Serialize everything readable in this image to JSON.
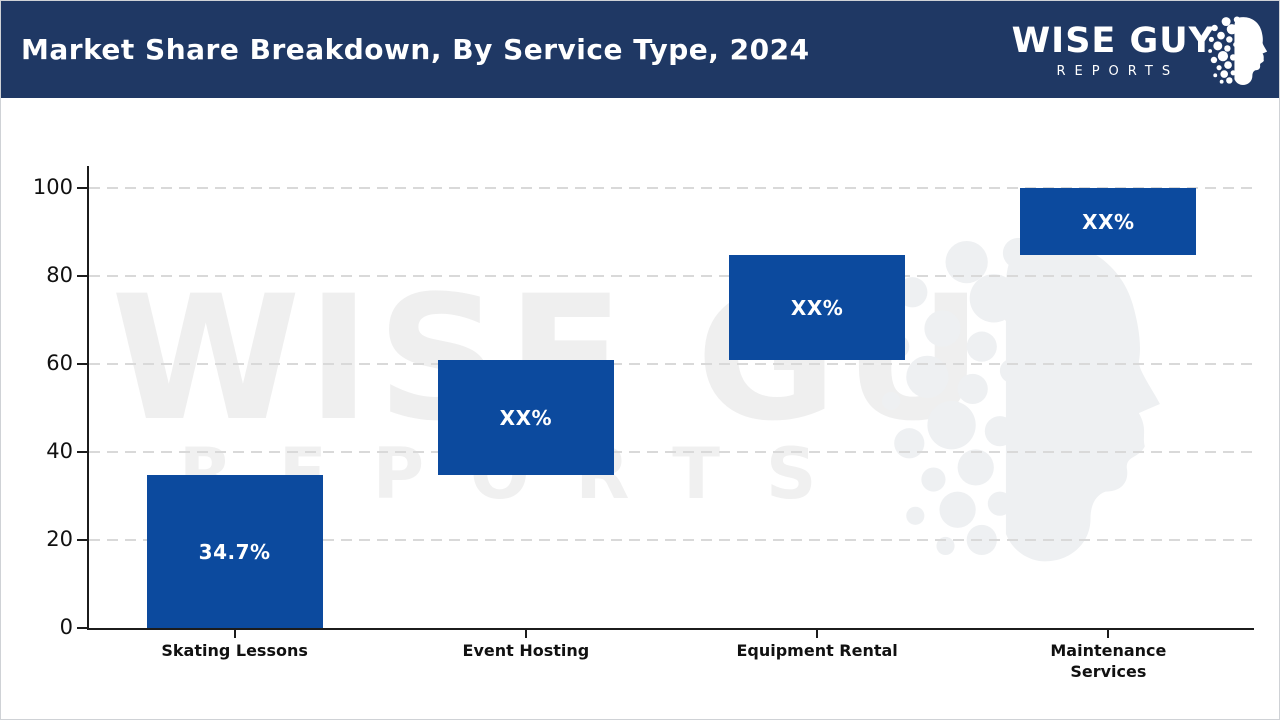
{
  "header": {
    "background": "#1f3864",
    "title": "Market Share Breakdown, By Service Type, 2024",
    "logo": {
      "name": "WISE GUY",
      "subtitle": "REPORTS",
      "head_icon": "dotted-head-profile"
    }
  },
  "watermark": {
    "wordmark": "WISE GUY",
    "subtitle": "REPORTS",
    "color": "#efefef",
    "head_icon": "dotted-head-profile"
  },
  "chart_data": {
    "type": "bar",
    "subtype": "waterfall",
    "title": "Market Share Breakdown, By Service Type, 2024",
    "categories": [
      "Skating Lessons",
      "Event Hosting",
      "Equipment Rental",
      "Maintenance Services"
    ],
    "category_lines": [
      [
        "Skating Lessons"
      ],
      [
        "Event Hosting"
      ],
      [
        "Equipment Rental"
      ],
      [
        "Maintenance",
        "Services"
      ]
    ],
    "series": [
      {
        "name": "Market share (%)",
        "segments": [
          {
            "category": "Skating Lessons",
            "start": 0,
            "end": 34.7,
            "label": "34.7%"
          },
          {
            "category": "Event Hosting",
            "start": 34.7,
            "end": 60.9,
            "label": "XX%"
          },
          {
            "category": "Equipment Rental",
            "start": 60.9,
            "end": 84.7,
            "label": "XX%"
          },
          {
            "category": "Maintenance Services",
            "start": 84.7,
            "end": 100,
            "label": "XX%"
          }
        ]
      }
    ],
    "ylim": [
      0,
      105
    ],
    "yticks": [
      0,
      20,
      40,
      60,
      80,
      100
    ],
    "xlabel": "",
    "ylabel": "",
    "bar_color": "#0c4a9e",
    "grid": {
      "axis": "y",
      "style": "dashed",
      "color": "#d9d9d9"
    },
    "axis_color": "#1c1c1c",
    "legend": "none"
  }
}
